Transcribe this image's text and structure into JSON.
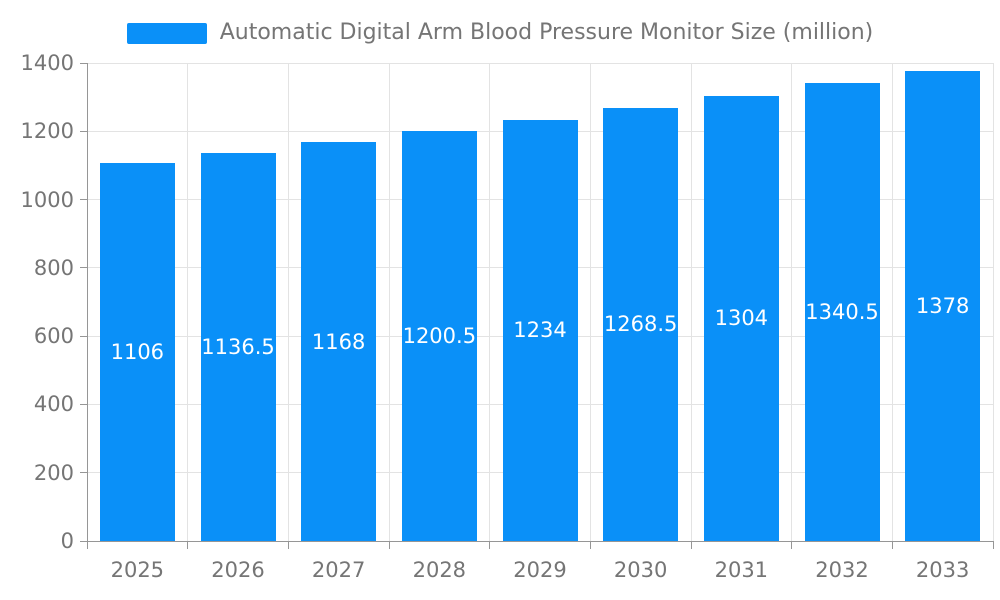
{
  "chart_data": {
    "type": "bar",
    "title": "Automatic Digital Arm Blood Pressure Monitor Size (million)",
    "categories": [
      "2025",
      "2026",
      "2027",
      "2028",
      "2029",
      "2030",
      "2031",
      "2032",
      "2033"
    ],
    "series": [
      {
        "name": "Automatic Digital Arm Blood Pressure Monitor Size (million)",
        "values": [
          1106,
          1136.5,
          1168,
          1200.5,
          1234,
          1268.5,
          1304,
          1340.5,
          1378
        ]
      }
    ],
    "xlabel": "",
    "ylabel": "",
    "ylim": [
      0,
      1400
    ],
    "ytick_step": 200,
    "ytick_labels": [
      "0",
      "200",
      "400",
      "600",
      "800",
      "1000",
      "1200",
      "1400"
    ],
    "grid": true,
    "legend_position": "top",
    "value_labels_position": "inside-center",
    "colors": {
      "bar": "#0a90f8",
      "value_label": "#ffffff",
      "axis_label": "#757575",
      "title": "#757575",
      "grid_line": "#e3e3e3",
      "axis_line": "#969696",
      "background": "#ffffff"
    }
  }
}
